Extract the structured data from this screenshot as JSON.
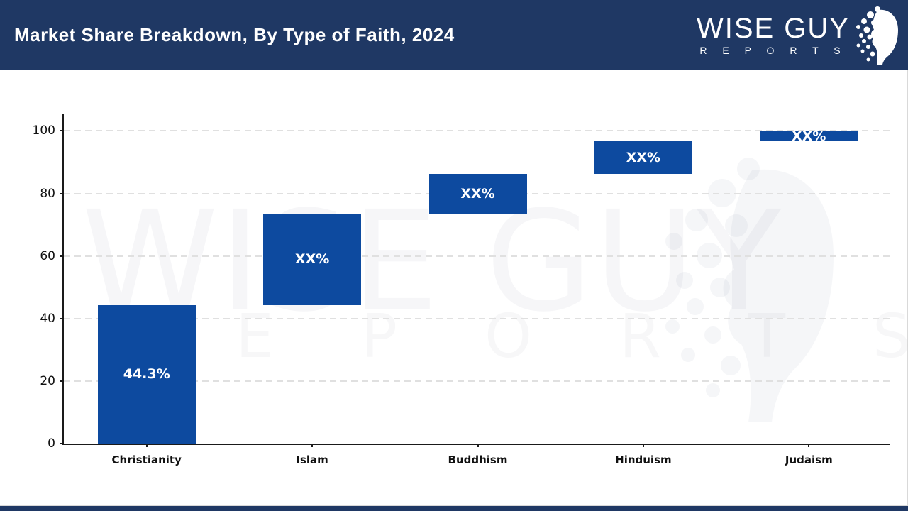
{
  "header": {
    "title": "Market Share Breakdown, By Type of Faith, 2024",
    "bg_color": "#1f3864",
    "logo": {
      "line1": "WISE GUY",
      "line2": "R E P O R T S"
    }
  },
  "watermark": {
    "line1": "WISE GUY",
    "line2": "R E P O R T S"
  },
  "chart_data": {
    "type": "bar",
    "subtype": "waterfall",
    "title": "Market Share Breakdown, By Type of Faith, 2024",
    "categories": [
      "Christianity",
      "Islam",
      "Buddhism",
      "Hinduism",
      "Judaism"
    ],
    "segments": [
      {
        "category": "Christianity",
        "start": 0,
        "end": 44.3,
        "label": "44.3%"
      },
      {
        "category": "Islam",
        "start": 44.3,
        "end": 73.6,
        "label": "XX%"
      },
      {
        "category": "Buddhism",
        "start": 73.6,
        "end": 86.2,
        "label": "XX%"
      },
      {
        "category": "Hinduism",
        "start": 86.2,
        "end": 96.8,
        "label": "XX%"
      },
      {
        "category": "Judaism",
        "start": 96.8,
        "end": 100,
        "label": "XX%"
      }
    ],
    "xlabel": "",
    "ylabel": "",
    "yticks": [
      0,
      20,
      40,
      60,
      80,
      100
    ],
    "ylim": [
      0,
      106
    ],
    "grid": "horizontal-dashed",
    "legend": "none",
    "bar_color": "#0d4a9f",
    "bar_label_color": "#ffffff",
    "axis_color": "#1a1a1a"
  }
}
